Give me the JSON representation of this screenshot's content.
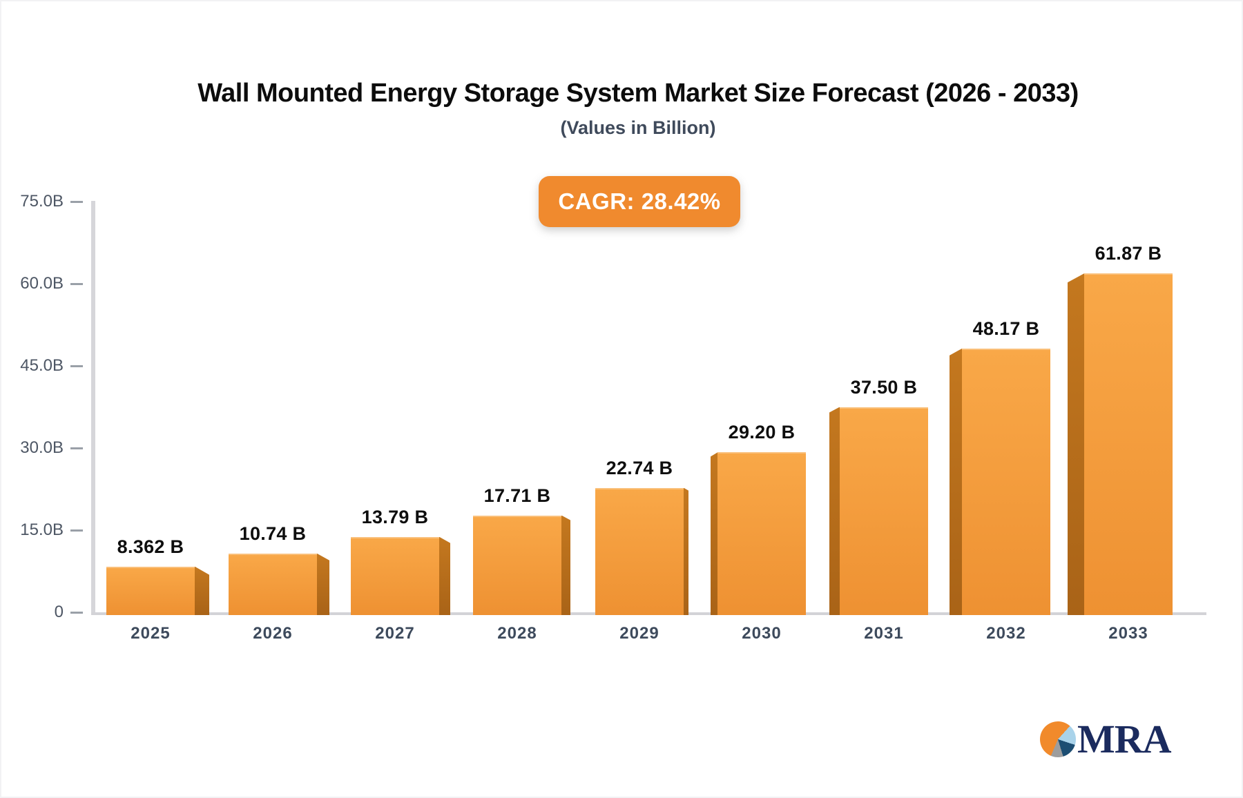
{
  "header": {
    "title": "Wall Mounted Energy Storage System Market Size Forecast (2026 - 2033)",
    "subtitle": "(Values in Billion)",
    "cagr_label": "CAGR: 28.42%"
  },
  "brand": {
    "name": "MRA"
  },
  "colors": {
    "badge_bg": "#f08a2e",
    "bar_face_top": "#f9a848",
    "bar_face_bottom": "#ee9132",
    "bar_side_top": "#c4781f",
    "bar_side_bottom": "#a96317",
    "axis_line": "#d6d6da",
    "tick_dash": "#9aa0a8",
    "y_label": "#4d5664",
    "x_label": "#3d4a5c",
    "value_label": "#0e0e0e",
    "title": "#0c0c0c",
    "subtitle": "#3f4a5b",
    "logo_text": "#1b2b5e",
    "pie_orange": "#f18a2b",
    "pie_lightblue": "#a9d3ea",
    "pie_navy": "#1c4e73",
    "pie_gray": "#9d9d9d"
  },
  "chart_data": {
    "type": "bar",
    "title": "Wall Mounted Energy Storage System Market Size Forecast (2026 - 2033)",
    "subtitle": "(Values in Billion)",
    "annotation": "CAGR: 28.42%",
    "categories": [
      "2025",
      "2026",
      "2027",
      "2028",
      "2029",
      "2030",
      "2031",
      "2032",
      "2033"
    ],
    "values": [
      8.362,
      10.74,
      13.79,
      17.71,
      22.74,
      29.2,
      37.5,
      48.17,
      61.87
    ],
    "value_labels": [
      "8.362 B",
      "10.74 B",
      "13.79 B",
      "17.71 B",
      "22.74 B",
      "29.20 B",
      "37.50 B",
      "48.17 B",
      "61.87 B"
    ],
    "xlabel": "",
    "ylabel": "",
    "ylim": [
      0,
      75
    ],
    "y_ticks": [
      {
        "value": 75,
        "label": "75.0B"
      },
      {
        "value": 60,
        "label": "60.0B"
      },
      {
        "value": 45,
        "label": "45.0B"
      },
      {
        "value": 30,
        "label": "30.0B"
      },
      {
        "value": 15,
        "label": "15.0B"
      },
      {
        "value": 0,
        "label": "0"
      }
    ],
    "grid": false,
    "legend": false,
    "bar_style": "3d-perspective-orange"
  }
}
